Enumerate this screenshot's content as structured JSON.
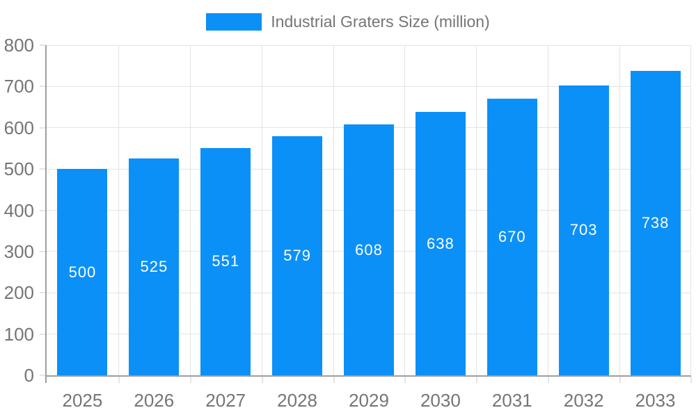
{
  "chart_data": {
    "type": "bar",
    "title": "Industrial Graters Size (million)",
    "categories": [
      "2025",
      "2026",
      "2027",
      "2028",
      "2029",
      "2030",
      "2031",
      "2032",
      "2033"
    ],
    "values": [
      500,
      525,
      551,
      579,
      608,
      638,
      670,
      703,
      738
    ],
    "xlabel": "",
    "ylabel": "",
    "ylim": [
      0,
      800
    ],
    "yticks": [
      0,
      100,
      200,
      300,
      400,
      500,
      600,
      700,
      800
    ],
    "grid": true,
    "bar_value_labels_visible": true,
    "legend": {
      "position": "top",
      "entries": [
        "Industrial Graters Size (million)"
      ]
    },
    "colors": {
      "bar": "#0b90f8",
      "grid": "#e4e4e4",
      "axis": "#9e9e9e",
      "axis_text": "#757575",
      "legend_text": "#757575",
      "bar_label": "#ffffff",
      "background": "#ffffff"
    }
  }
}
